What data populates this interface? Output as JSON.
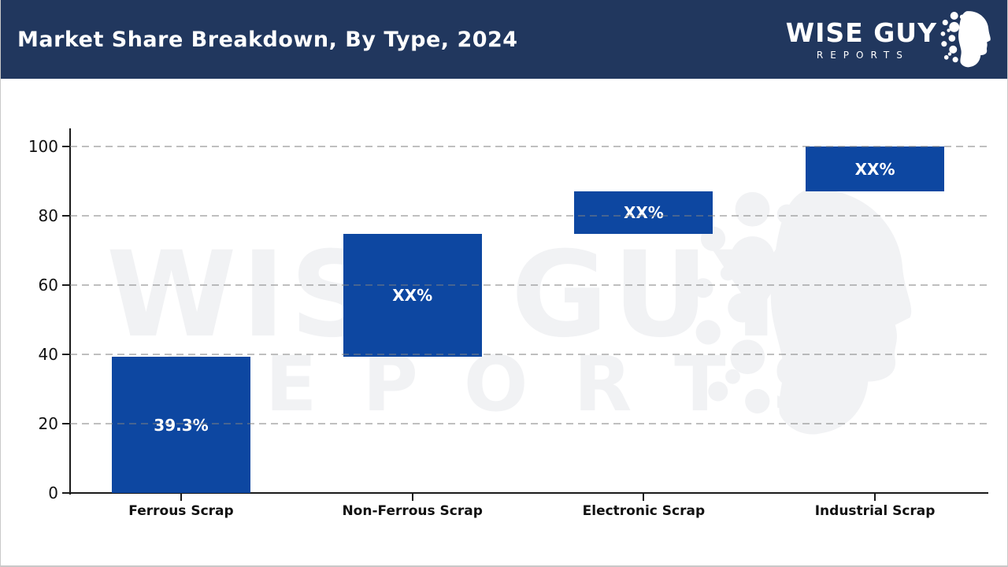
{
  "header": {
    "title": "Market Share Breakdown, By Type, 2024",
    "logo": {
      "line1": "WISE GUY",
      "line2": "REPORTS"
    }
  },
  "watermark": {
    "line1": "WISE GUY",
    "line2": "REPORTS"
  },
  "colors": {
    "header_bg": "#21375e",
    "bar": "#0d47a1",
    "axis": "#1a1a1a",
    "grid": "#c8c8c8",
    "watermark": "#f1f2f4"
  },
  "chart_data": {
    "type": "bar",
    "subtype": "waterfall",
    "title": "Market Share Breakdown, By Type, 2024",
    "xlabel": "",
    "ylabel": "",
    "categories": [
      "Ferrous Scrap",
      "Non-Ferrous Scrap",
      "Electronic Scrap",
      "Industrial Scrap"
    ],
    "segments": [
      {
        "start": 0,
        "end": 39.3,
        "label": "39.3%"
      },
      {
        "start": 39.3,
        "end": 74.8,
        "label": "XX%"
      },
      {
        "start": 74.8,
        "end": 87,
        "label": "XX%"
      },
      {
        "start": 87,
        "end": 100,
        "label": "XX%"
      }
    ],
    "y_ticks": [
      0,
      20,
      40,
      60,
      80,
      100
    ],
    "ylim": [
      0,
      105
    ],
    "grid": true,
    "grid_style": "dashed",
    "legend": "none"
  }
}
